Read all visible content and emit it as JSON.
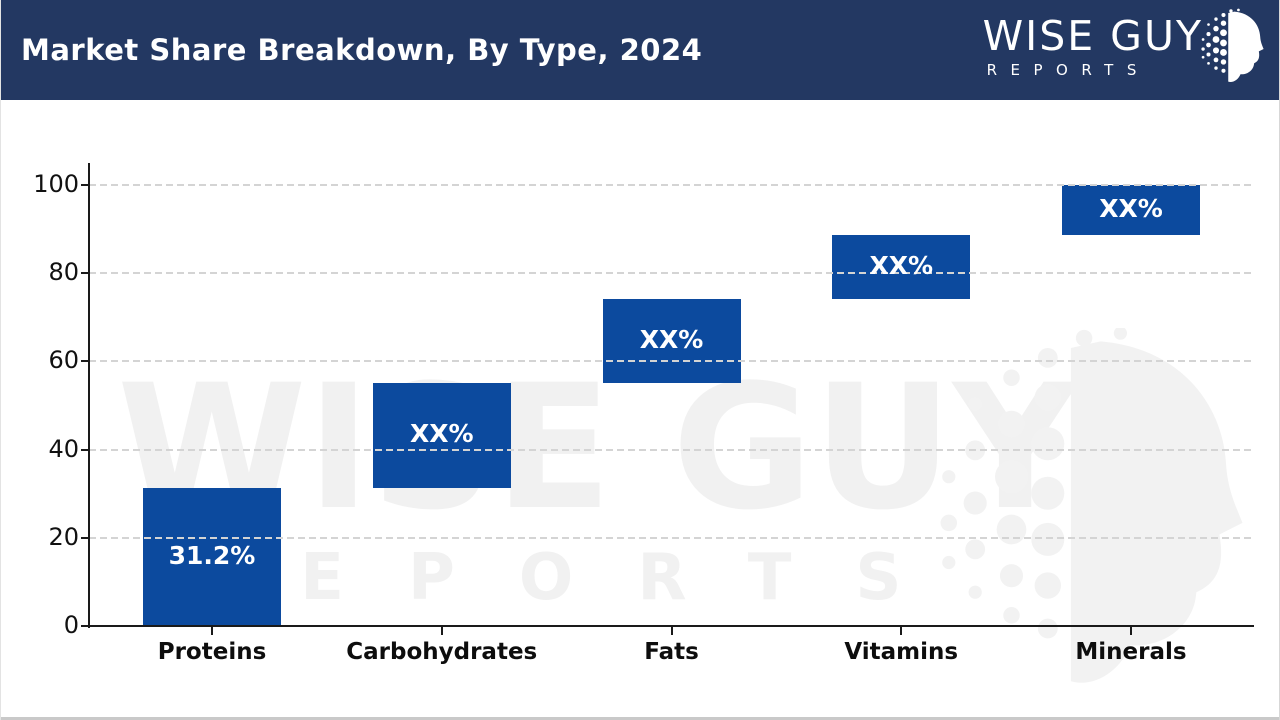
{
  "header": {
    "title": "Market Share Breakdown, By Type, 2024",
    "logo": {
      "line1": "WISE GUY",
      "line2": "REPORTS"
    }
  },
  "watermark": {
    "line1": "WISE GUY",
    "line2": "REPORTS"
  },
  "colors": {
    "header_bg": "#233862",
    "bar": "#0c4a9e",
    "grid": "#d4d4d4",
    "axis": "#1a1a1a",
    "bar_label": "#ffffff",
    "watermark": "#f1f1f1"
  },
  "chart_data": {
    "type": "bar",
    "subtype": "waterfall",
    "title": "Market Share Breakdown, By Type, 2024",
    "xlabel": "",
    "ylabel": "",
    "categories": [
      "Proteins",
      "Carbohydrates",
      "Fats",
      "Vitamins",
      "Minerals"
    ],
    "segments": [
      {
        "category": "Proteins",
        "start": 0,
        "end": 31.2,
        "label": "31.2%"
      },
      {
        "category": "Carbohydrates",
        "start": 31.2,
        "end": 55.2,
        "label": "XX%"
      },
      {
        "category": "Fats",
        "start": 55.2,
        "end": 74.2,
        "label": "XX%"
      },
      {
        "category": "Vitamins",
        "start": 74.2,
        "end": 88.7,
        "label": "XX%"
      },
      {
        "category": "Minerals",
        "start": 88.7,
        "end": 100,
        "label": "XX%"
      }
    ],
    "yticks": [
      0,
      20,
      40,
      60,
      80,
      100
    ],
    "ylim": [
      0,
      105
    ],
    "grid": "horizontal-dashed",
    "legend": null
  }
}
